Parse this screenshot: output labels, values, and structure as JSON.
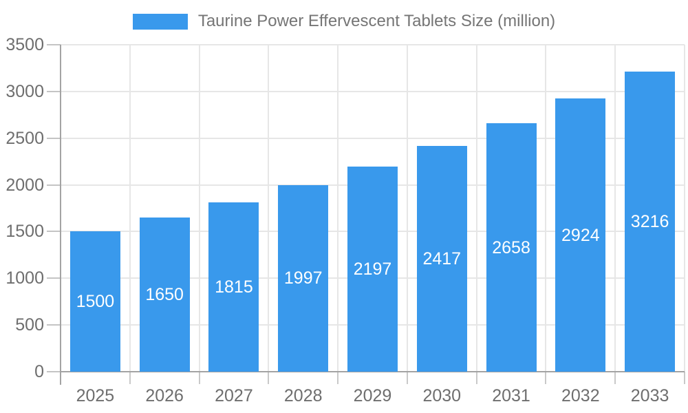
{
  "legend": {
    "label": "Taurine Power Effervescent Tablets Size (million)",
    "swatch_color": "#3999ec"
  },
  "chart_data": {
    "type": "bar",
    "title": "Taurine Power Effervescent Tablets Size (million)",
    "categories": [
      "2025",
      "2026",
      "2027",
      "2028",
      "2029",
      "2030",
      "2031",
      "2032",
      "2033"
    ],
    "values": [
      1500,
      1650,
      1815,
      1997,
      2197,
      2417,
      2658,
      2924,
      3216
    ],
    "series": [
      {
        "name": "Taurine Power Effervescent Tablets Size (million)",
        "values": [
          1500,
          1650,
          1815,
          1997,
          2197,
          2417,
          2658,
          2924,
          3216
        ]
      }
    ],
    "xlabel": "",
    "ylabel": "",
    "ylim": [
      0,
      3500
    ],
    "ytick_step": 500,
    "ytick_labels": [
      "0",
      "500",
      "1000",
      "1500",
      "2000",
      "2500",
      "3000",
      "3500"
    ],
    "grid": true,
    "legend_position": "top",
    "bar_color": "#3999ec",
    "value_label_color": "#ffffff",
    "value_label_position": "inside-center"
  },
  "colors": {
    "bar": "#3999ec",
    "gridline": "#e6e6e6",
    "axis_line": "#a3a3a3",
    "tick": "#c4c4c4",
    "axis_text": "#6e6e6e",
    "legend_text": "#757575",
    "background": "#ffffff"
  }
}
